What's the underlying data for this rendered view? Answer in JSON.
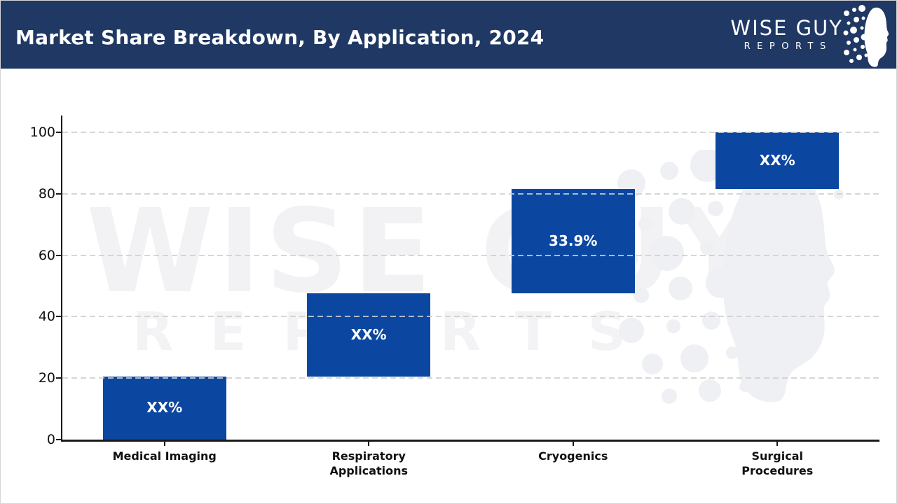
{
  "header": {
    "title": "Market Share Breakdown, By Application, 2024",
    "logo": {
      "line1": "WISE GUY",
      "line2": "REPORTS"
    }
  },
  "watermark": {
    "line1": "WISE GUY",
    "line2": "REPORTS"
  },
  "chart_data": {
    "type": "bar",
    "subtype": "waterfall-floating-bars",
    "title": "Market Share Breakdown, By Application, 2024",
    "categories": [
      "Medical Imaging",
      "Respiratory Applications",
      "Cryogenics",
      "Surgical Procedures"
    ],
    "category_lines": [
      [
        "Medical Imaging"
      ],
      [
        "Respiratory",
        "Applications"
      ],
      [
        "Cryogenics"
      ],
      [
        "Surgical",
        "Procedures"
      ]
    ],
    "segments": [
      [
        0,
        20.5
      ],
      [
        20.5,
        47.6
      ],
      [
        47.6,
        81.5
      ],
      [
        81.5,
        100
      ]
    ],
    "values": [
      20.5,
      27.1,
      33.9,
      18.5
    ],
    "bar_labels": [
      "XX%",
      "XX%",
      "33.9%",
      "XX%"
    ],
    "xlabel": "",
    "ylabel": "",
    "ylim": [
      0,
      100
    ],
    "yticks": [
      0,
      20,
      40,
      60,
      80,
      100
    ],
    "grid": "horizontal-dashed",
    "legend": "none",
    "bar_color": "#0b47a1",
    "bar_label_color": "#ffffff",
    "axis_color": "#1a1a1a",
    "grid_color": "#cfcfcf"
  },
  "colors": {
    "header_bg": "#1f3864",
    "page_bg": "#ffffff",
    "watermark": "#f2f2f4"
  }
}
